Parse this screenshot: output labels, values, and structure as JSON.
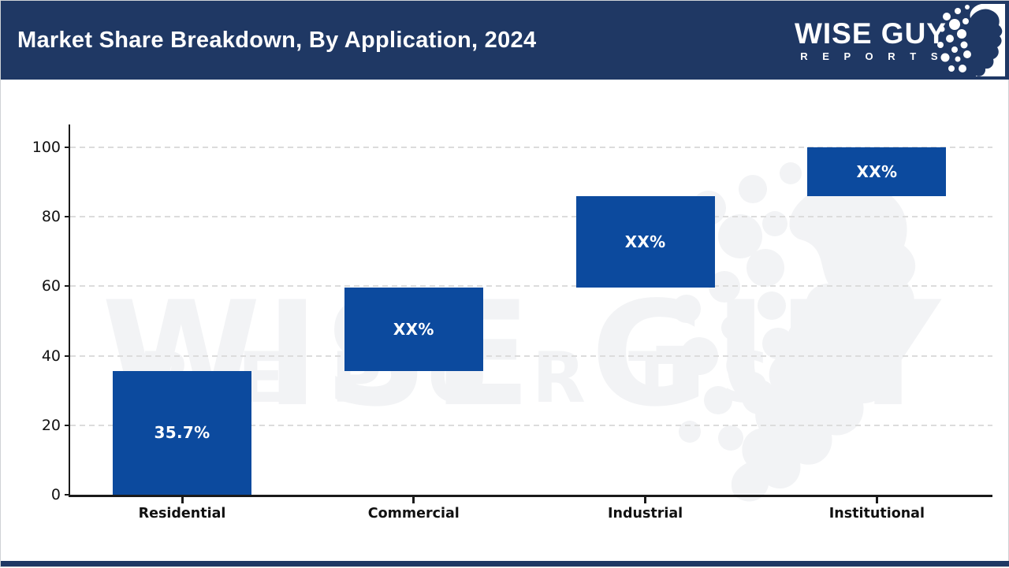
{
  "header": {
    "title": "Market Share Breakdown, By Application, 2024",
    "logo_line1": "WISE GUY",
    "logo_line2": "R E P O R T S"
  },
  "watermark": {
    "line1": "WISE GUY",
    "line2": "REPORTS"
  },
  "colors": {
    "header_bg": "#1f3864",
    "footer_bg": "#1f3864",
    "bar": "#0c4a9e",
    "bar_label": "#ffffff",
    "grid": "#dcdcdc",
    "axis": "#1a1a1a",
    "watermark": "#f2f3f5",
    "page_bg": "#ffffff",
    "title_text": "#ffffff"
  },
  "chart_data": {
    "type": "bar",
    "subtype": "waterfall",
    "title": "Market Share Breakdown, By Application, 2024",
    "categories": [
      "Residential",
      "Commercial",
      "Industrial",
      "Institutional"
    ],
    "segments": [
      {
        "category": "Residential",
        "start": 0,
        "end": 35.7,
        "label": "35.7%"
      },
      {
        "category": "Commercial",
        "start": 35.7,
        "end": 59.7,
        "label": "XX%"
      },
      {
        "category": "Industrial",
        "start": 59.7,
        "end": 86.0,
        "label": "XX%"
      },
      {
        "category": "Institutional",
        "start": 86.0,
        "end": 100.0,
        "label": "XX%"
      }
    ],
    "xlabel": "",
    "ylabel": "",
    "ylim": [
      0,
      100
    ],
    "yticks": [
      0,
      20,
      40,
      60,
      80,
      100
    ],
    "grid": "horizontal-dashed",
    "legend": "none"
  }
}
